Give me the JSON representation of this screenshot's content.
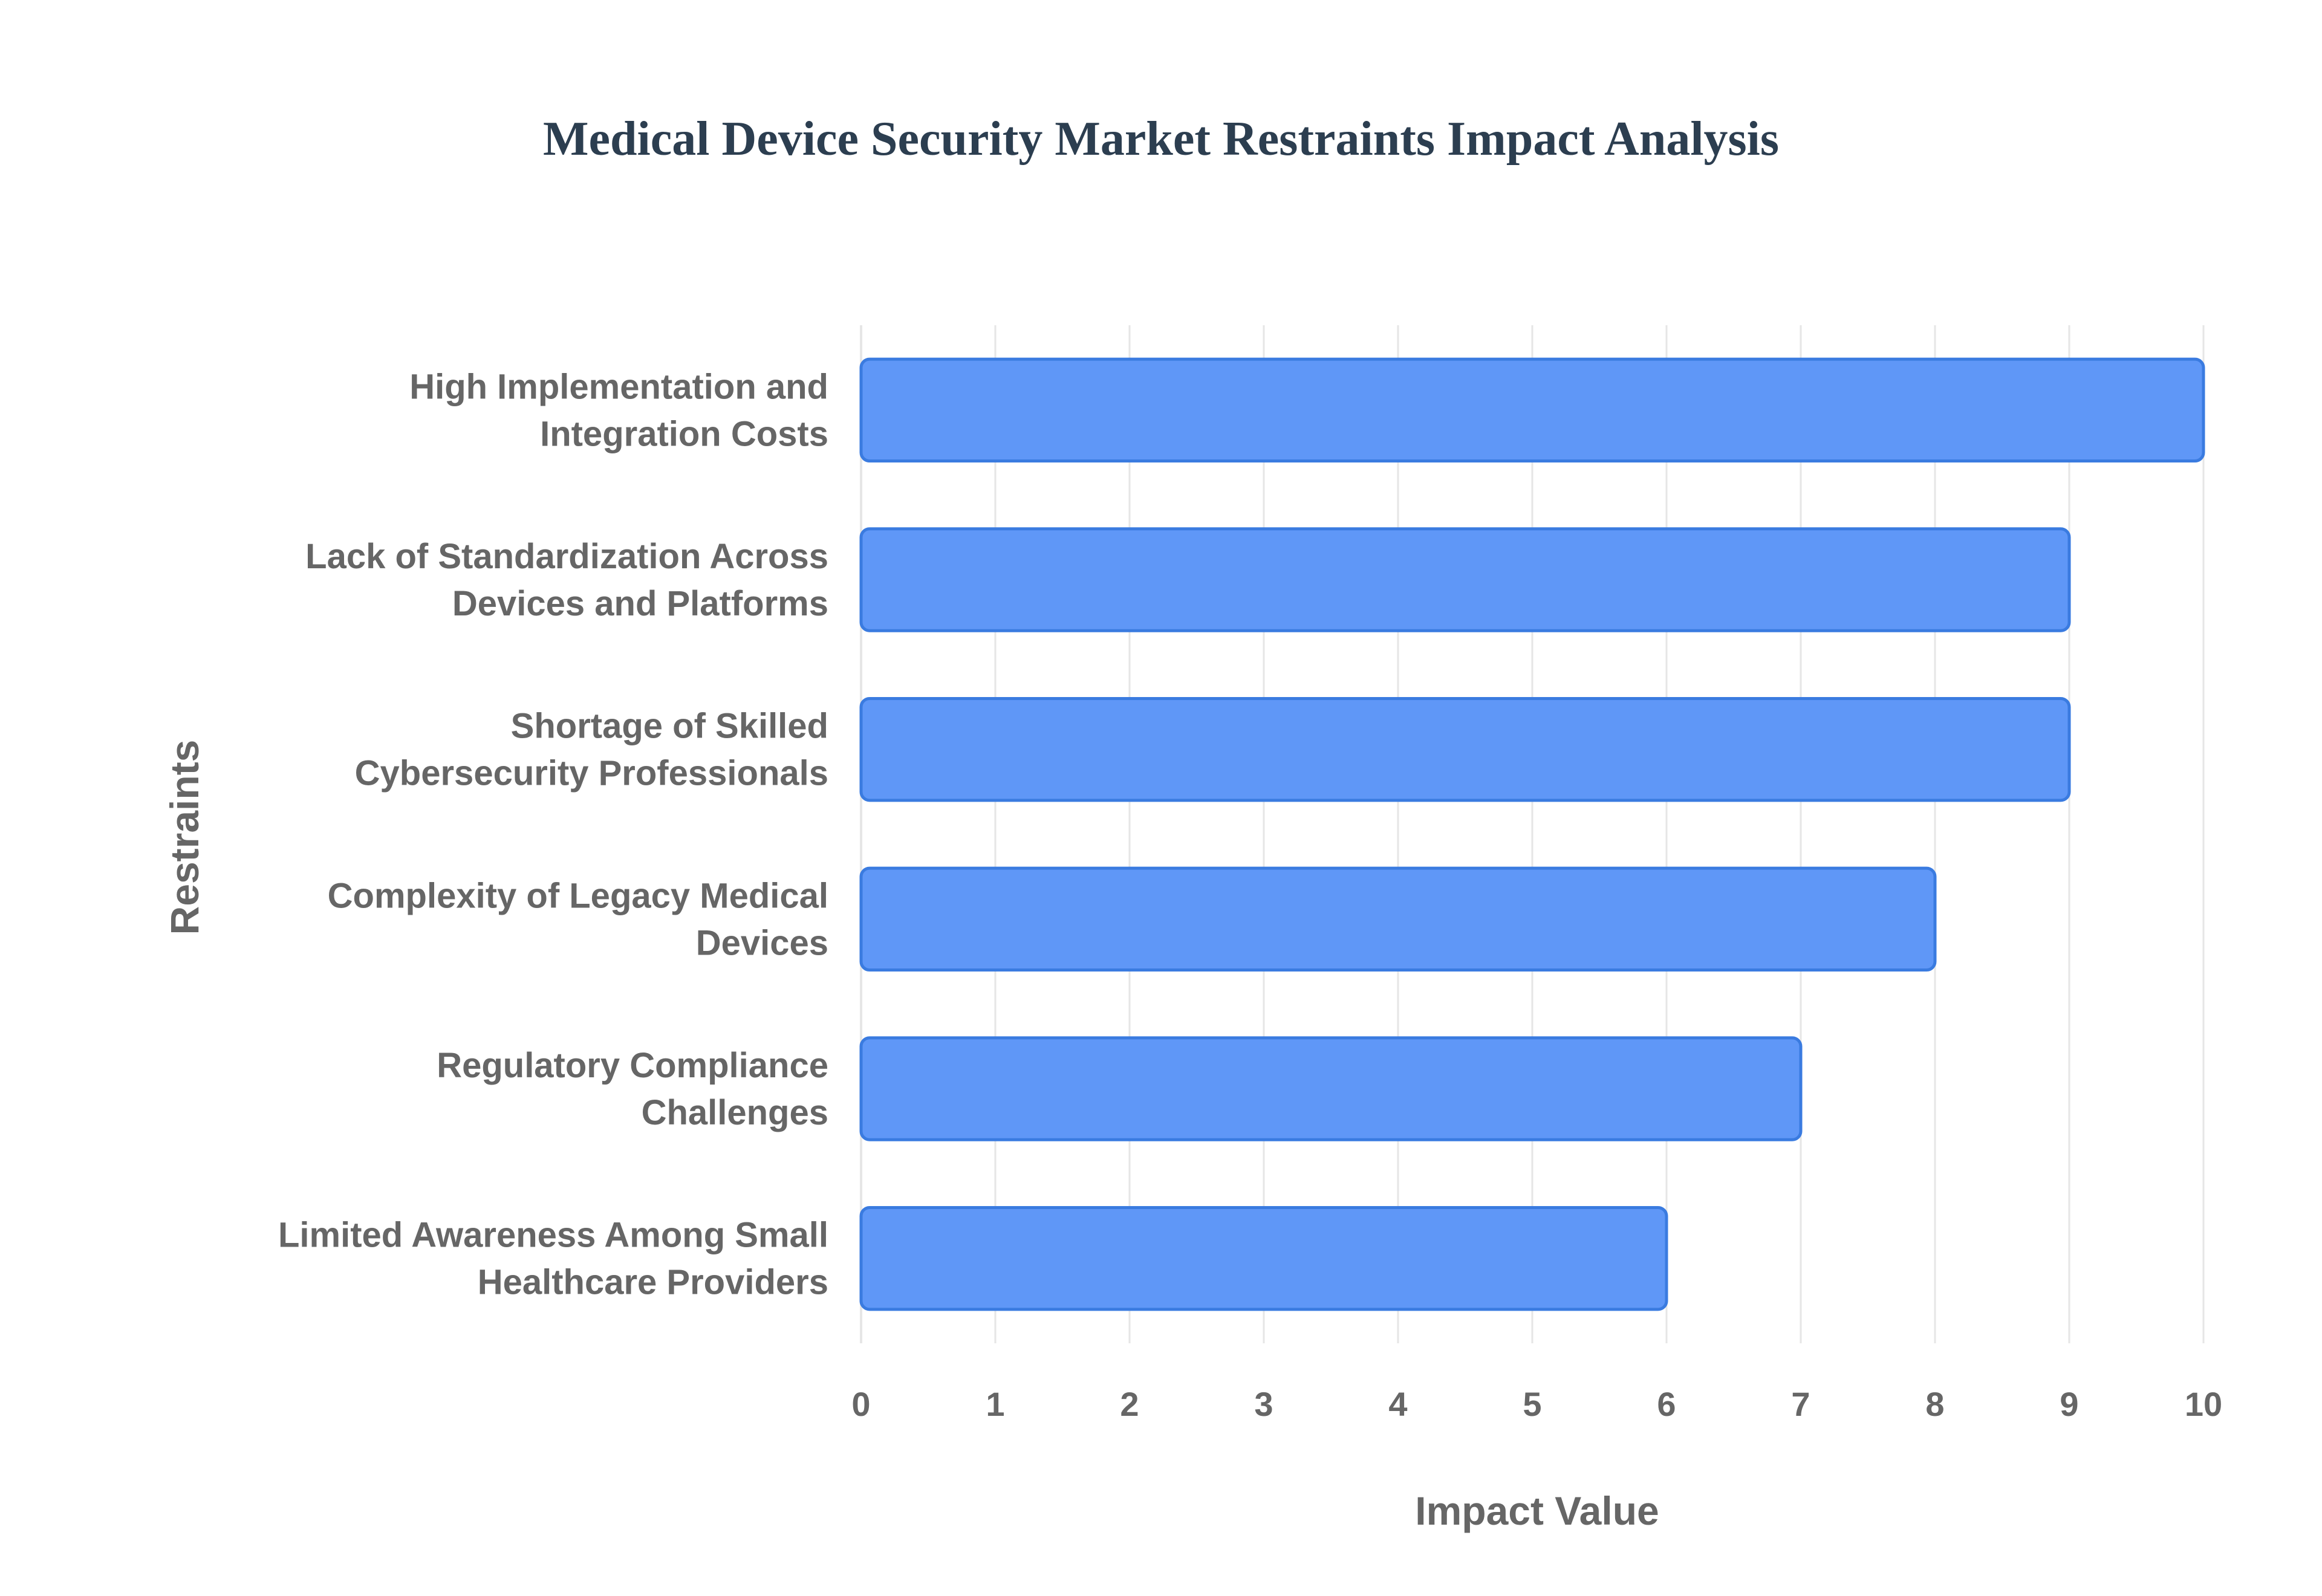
{
  "chart_data": {
    "type": "bar",
    "orientation": "horizontal",
    "title": "Medical Device Security Market Restraints Impact Analysis",
    "xlabel": "Impact Value",
    "ylabel": "Restraints",
    "xlim": [
      0,
      10
    ],
    "xticks": [
      "0",
      "1",
      "2",
      "3",
      "4",
      "5",
      "6",
      "7",
      "8",
      "9",
      "10"
    ],
    "grid": true,
    "categories": [
      [
        "High Implementation and",
        "Integration Costs"
      ],
      [
        "Lack of Standardization Across",
        "Devices and Platforms"
      ],
      [
        "Shortage of Skilled",
        "Cybersecurity Professionals"
      ],
      [
        "Complexity of Legacy Medical",
        "Devices"
      ],
      [
        "Regulatory Compliance",
        "Challenges"
      ],
      [
        "Limited Awareness Among Small",
        "Healthcare Providers"
      ]
    ],
    "values": [
      10,
      9,
      9,
      8,
      7,
      6
    ]
  },
  "colors": {
    "bar_fill": "#5f97f7",
    "bar_stroke": "#3a7be0",
    "title": "#2c3e50",
    "text": "#666666",
    "grid": "#e6e6e6"
  }
}
